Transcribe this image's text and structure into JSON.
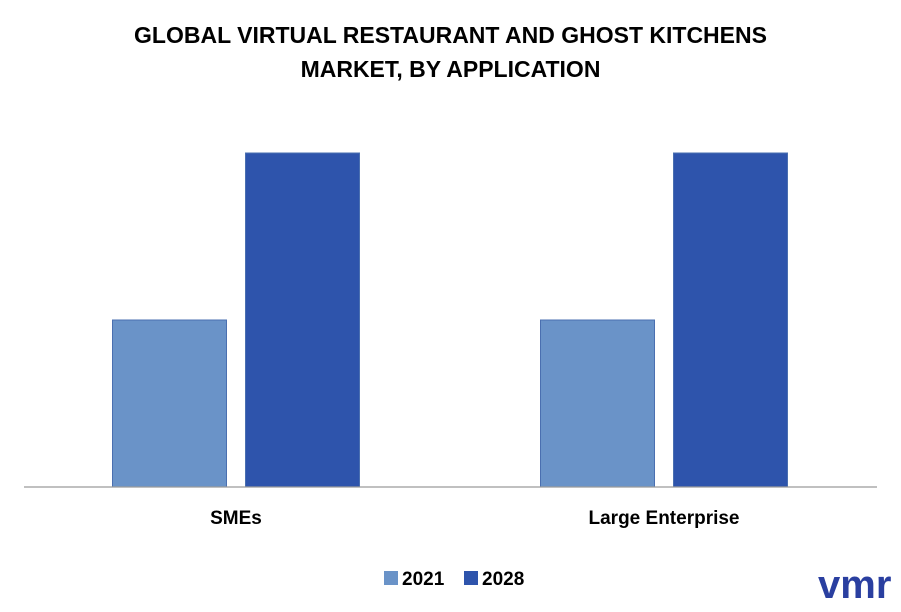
{
  "chart_data": {
    "type": "bar",
    "title_lines": [
      "GLOBAL VIRTUAL RESTAURANT AND GHOST KITCHENS",
      "MARKET, BY APPLICATION"
    ],
    "categories": [
      "SMEs",
      "Large Enterprise"
    ],
    "series": [
      {
        "name": "2021",
        "values": [
          50,
          50
        ],
        "color": "#6a93c8"
      },
      {
        "name": "2028",
        "values": [
          100,
          100
        ],
        "color": "#2e54ac"
      }
    ],
    "ylim": [
      0,
      100
    ],
    "grid": false,
    "legend_position": "bottom-center",
    "xlabel": "",
    "ylabel": ""
  },
  "logo": {
    "text": "vmr",
    "color": "#2a3fa0",
    "icon": "vmr-logo"
  }
}
